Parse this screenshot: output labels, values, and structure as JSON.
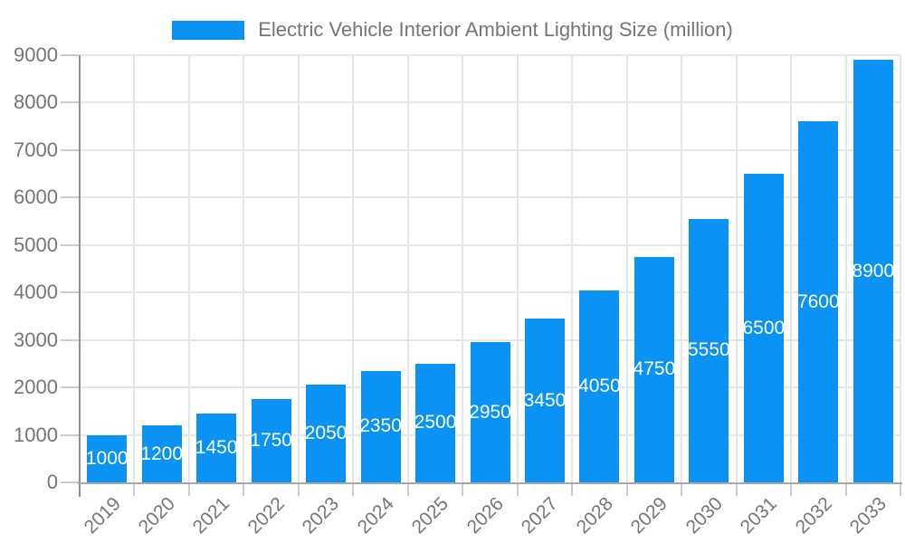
{
  "chart_data": {
    "type": "bar",
    "title": "Electric Vehicle Interior Ambient Lighting Size (million)",
    "categories": [
      "2019",
      "2020",
      "2021",
      "2022",
      "2023",
      "2024",
      "2025",
      "2026",
      "2027",
      "2028",
      "2029",
      "2030",
      "2031",
      "2032",
      "2033"
    ],
    "values": [
      1000,
      1200,
      1450,
      1750,
      2050,
      2350,
      2500,
      2950,
      3450,
      4050,
      4750,
      5550,
      6500,
      7600,
      8900
    ],
    "yticks": [
      "0",
      "1000",
      "2000",
      "3000",
      "4000",
      "5000",
      "6000",
      "7000",
      "8000",
      "9000"
    ],
    "ylim": [
      0,
      9000
    ],
    "xlabel": "",
    "ylabel": "",
    "legend_position": "top",
    "grid": "on",
    "value_labels": "inside-center",
    "colors": {
      "bar": "#0b92f5",
      "bar_value_label": "#ffffff",
      "axis_text": "#757575",
      "gridline": "#e6e6e6",
      "axis_line_y": "#8f8f8f",
      "axis_line_x": "#a6a6a6",
      "tick": "#cccccc",
      "background": "#ffffff"
    }
  }
}
